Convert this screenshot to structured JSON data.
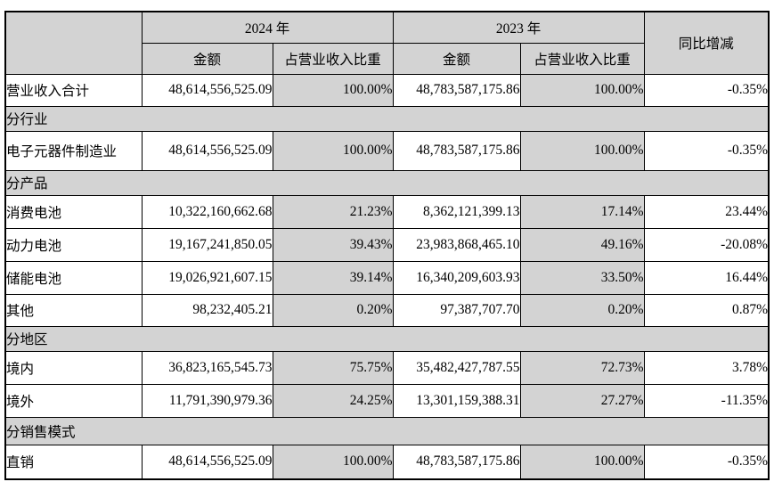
{
  "table": {
    "header": {
      "corner": "",
      "year_2024": "2024 年",
      "year_2023": "2023 年",
      "yoy_label": "同比增减",
      "amount_2024": "金额",
      "share_2024": "占营业收入比重",
      "amount_2023": "金额",
      "share_2023": "占营业收入比重"
    },
    "rows": [
      {
        "type": "data",
        "variant": "first",
        "label": "营业收入合计",
        "amount_2024": "48,614,556,525.09",
        "share_2024": "100.00%",
        "amount_2023": "48,783,587,175.86",
        "share_2023": "100.00%",
        "yoy": "-0.35%"
      },
      {
        "type": "section",
        "label": "分行业"
      },
      {
        "type": "data",
        "variant": "tall",
        "label": "电子元器件制造业",
        "amount_2024": "48,614,556,525.09",
        "share_2024": "100.00%",
        "amount_2023": "48,783,587,175.86",
        "share_2023": "100.00%",
        "yoy": "-0.35%"
      },
      {
        "type": "section",
        "label": "分产品"
      },
      {
        "type": "data",
        "variant": "",
        "label": "消费电池",
        "amount_2024": "10,322,160,662.68",
        "share_2024": "21.23%",
        "amount_2023": "8,362,121,399.13",
        "share_2023": "17.14%",
        "yoy": "23.44%"
      },
      {
        "type": "data",
        "variant": "",
        "label": "动力电池",
        "amount_2024": "19,167,241,850.05",
        "share_2024": "39.43%",
        "amount_2023": "23,983,868,465.10",
        "share_2023": "49.16%",
        "yoy": "-20.08%"
      },
      {
        "type": "data",
        "variant": "",
        "label": "储能电池",
        "amount_2024": "19,026,921,607.15",
        "share_2024": "39.14%",
        "amount_2023": "16,340,209,603.93",
        "share_2023": "33.50%",
        "yoy": "16.44%"
      },
      {
        "type": "data",
        "variant": "first",
        "label": "其他",
        "amount_2024": "98,232,405.21",
        "share_2024": "0.20%",
        "amount_2023": "97,387,707.70",
        "share_2023": "0.20%",
        "yoy": "0.87%"
      },
      {
        "type": "section",
        "label": "分地区"
      },
      {
        "type": "data",
        "variant": "",
        "label": "境内",
        "amount_2024": "36,823,165,545.73",
        "share_2024": "75.75%",
        "amount_2023": "35,482,427,787.55",
        "share_2023": "72.73%",
        "yoy": "3.78%"
      },
      {
        "type": "data",
        "variant": "",
        "label": "境外",
        "amount_2024": "11,791,390,979.36",
        "share_2024": "24.25%",
        "amount_2023": "13,301,159,388.31",
        "share_2023": "27.27%",
        "yoy": "-11.35%"
      },
      {
        "type": "section",
        "variant": "mode",
        "label": "分销售模式"
      },
      {
        "type": "data",
        "variant": "last",
        "label": "直销",
        "amount_2024": "48,614,556,525.09",
        "share_2024": "100.00%",
        "amount_2023": "48,783,587,175.86",
        "share_2023": "100.00%",
        "yoy": "-0.35%"
      }
    ]
  },
  "colors": {
    "shade": "#d3d3d3",
    "border": "#000000",
    "page_background": "#ffffff"
  }
}
